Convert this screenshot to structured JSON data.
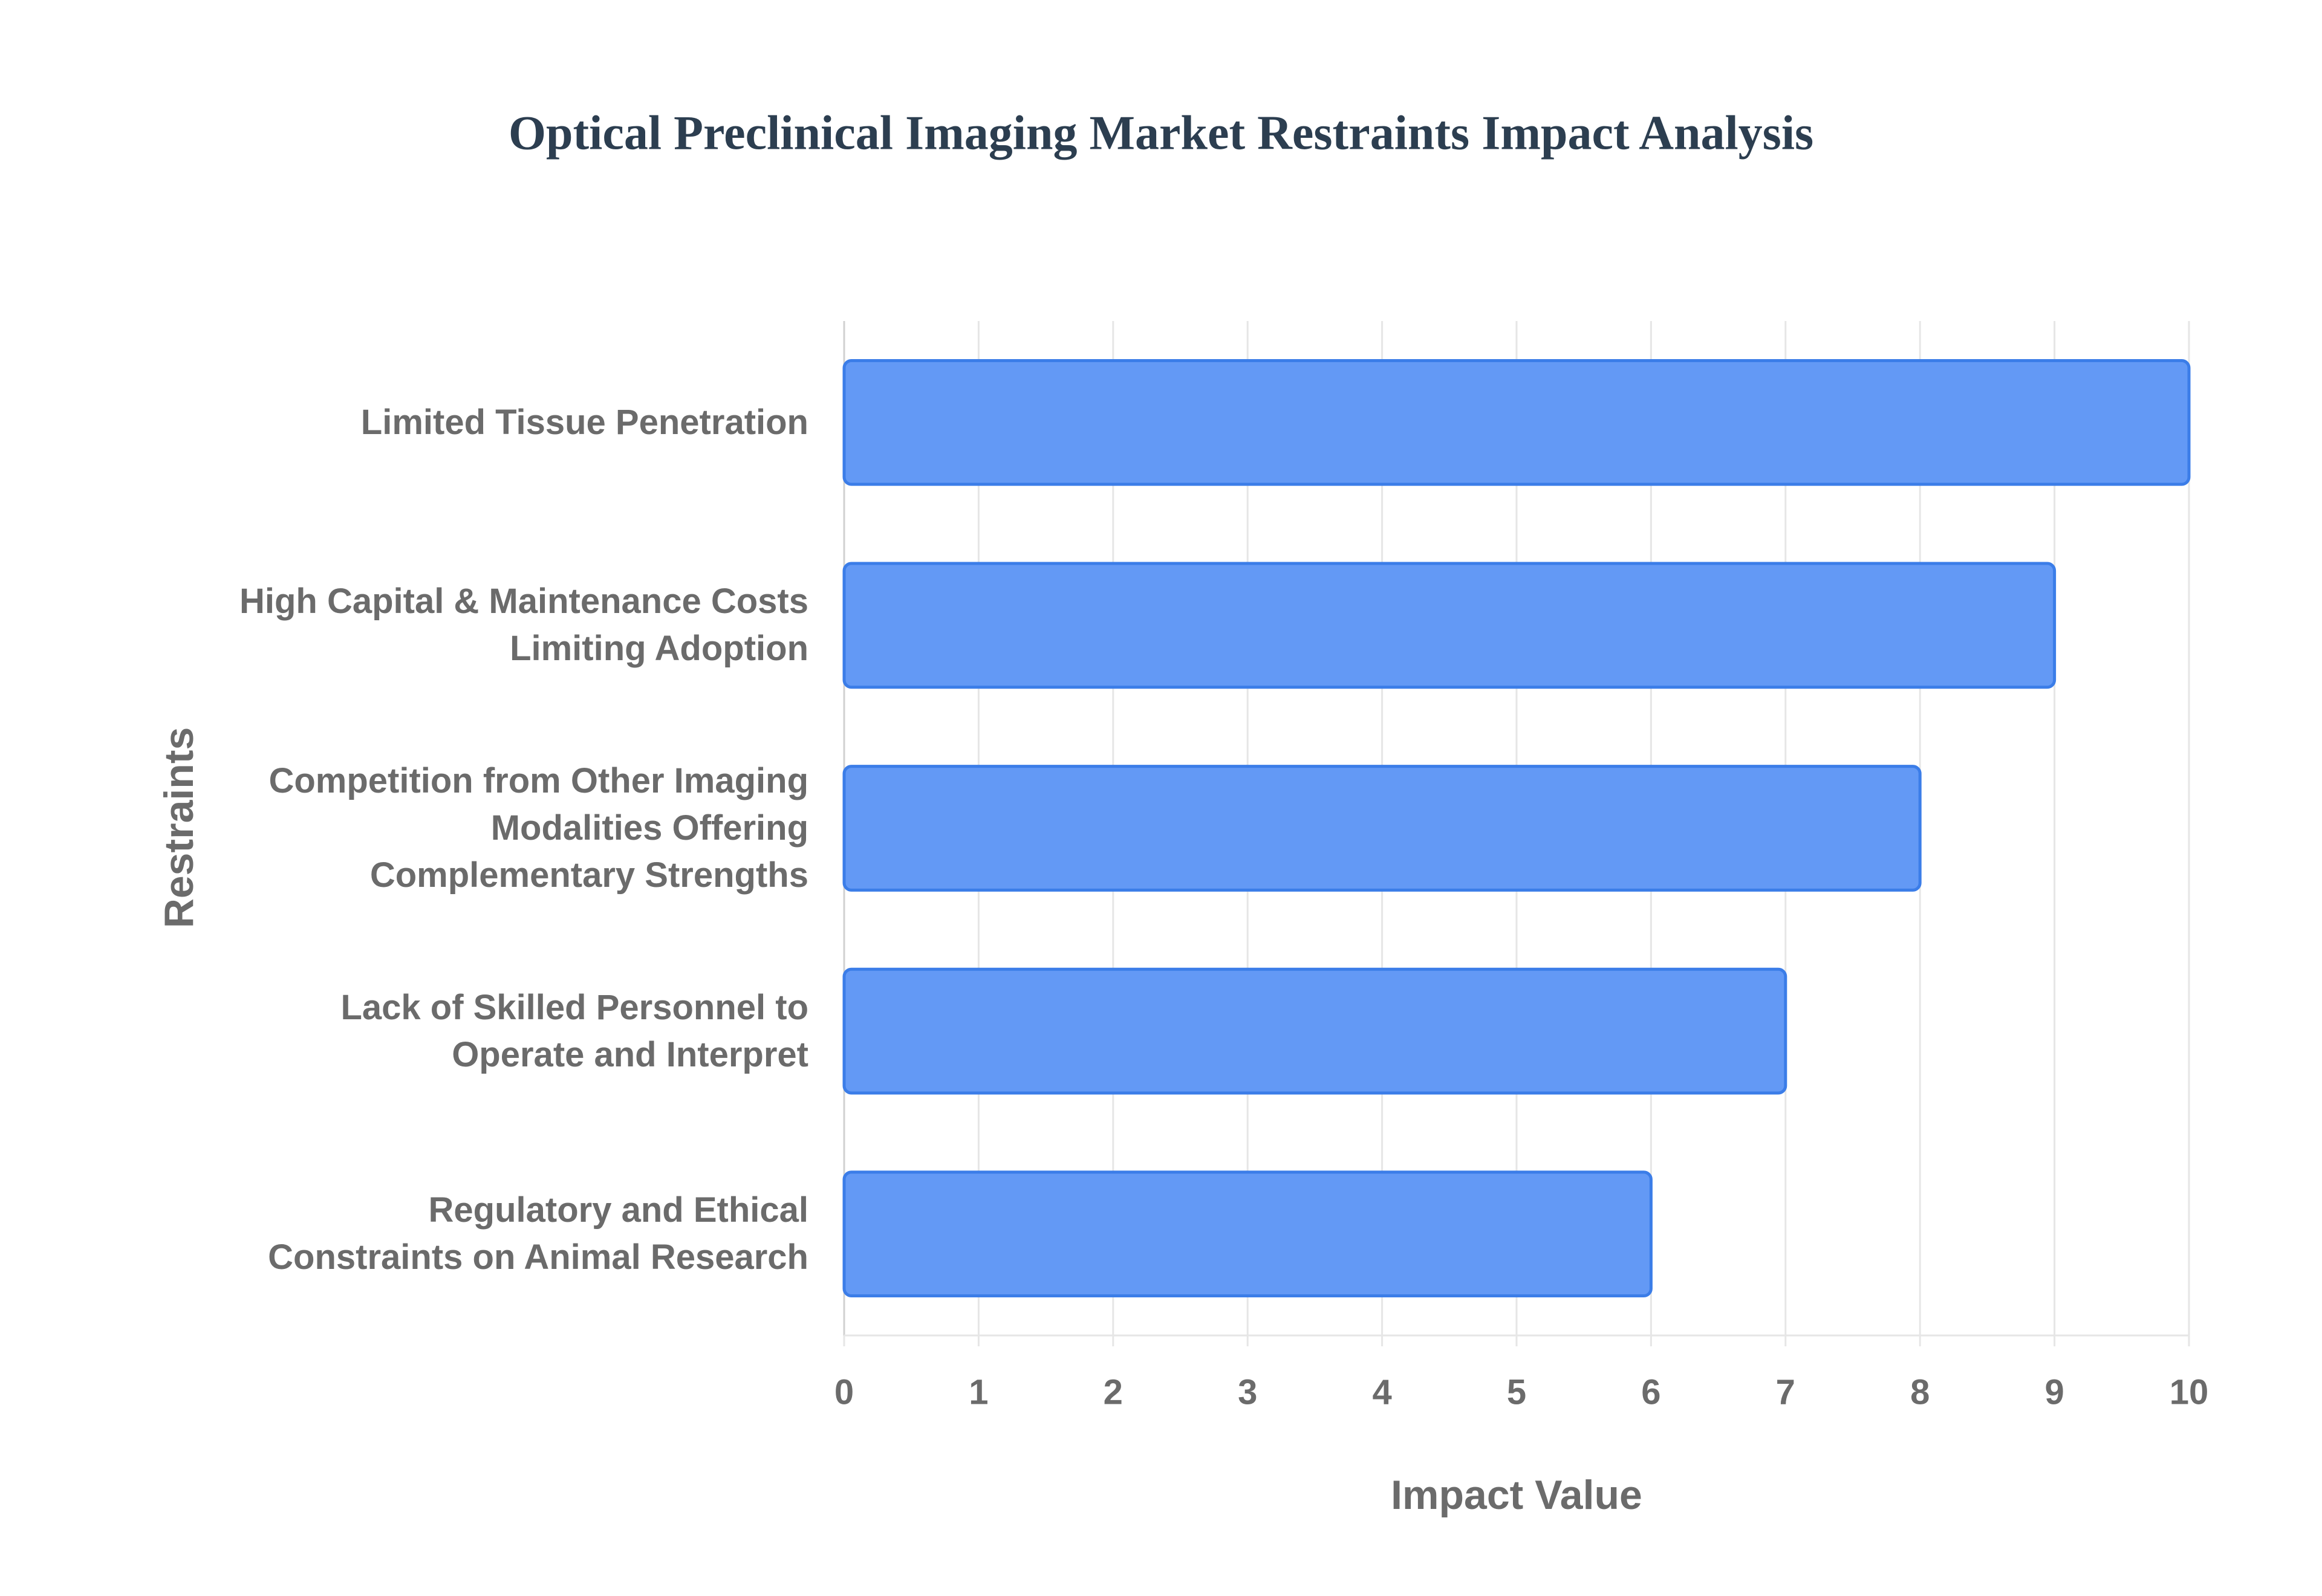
{
  "chart_data": {
    "type": "bar",
    "orientation": "horizontal",
    "title": "Optical Preclinical Imaging Market Restraints Impact Analysis",
    "x_label": "Impact Value",
    "y_label": "Restraints",
    "categories": [
      "Limited Tissue Penetration",
      "High Capital & Maintenance Costs Limiting Adoption",
      "Competition from Other Imaging Modalities Offering Complementary Strengths",
      "Lack of Skilled Personnel to Operate and Interpret",
      "Regulatory and Ethical Constraints on Animal Research"
    ],
    "values": [
      10,
      9,
      8,
      7,
      6
    ],
    "color": "#6399f5",
    "edge_color": "#3b7de8",
    "xlim": [
      0,
      10
    ],
    "xticks": [
      0,
      1,
      2,
      3,
      4,
      5,
      6,
      7,
      8,
      9,
      10
    ],
    "grid": true
  }
}
